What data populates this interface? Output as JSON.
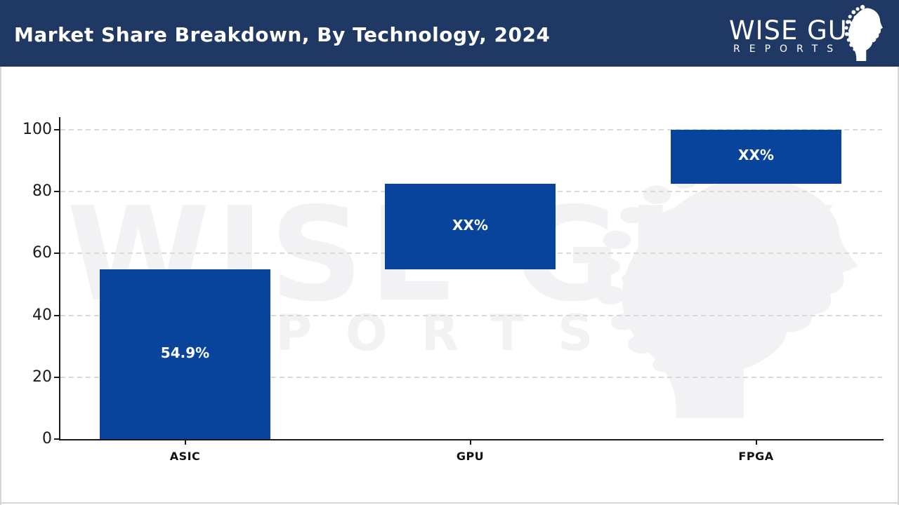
{
  "header": {
    "title": "Market Share Breakdown, By Technology, 2024",
    "bg_color": "#1f3864",
    "logo": {
      "name": "WISE GUY",
      "sub": "REPORTS"
    }
  },
  "watermark": {
    "name": "WISE GUY",
    "sub": "REPORTS"
  },
  "chart_data": {
    "type": "bar",
    "subtype": "stacked-waterfall",
    "title": "Market Share Breakdown, By Technology, 2024",
    "categories": [
      "ASIC",
      "GPU",
      "FPGA"
    ],
    "series": [
      {
        "name": "ASIC",
        "start": 0,
        "end": 54.9,
        "label": "54.9%"
      },
      {
        "name": "GPU",
        "start": 54.9,
        "end": 82.6,
        "label": "XX%"
      },
      {
        "name": "FPGA",
        "start": 82.6,
        "end": 100,
        "label": "XX%"
      }
    ],
    "xlabel": "",
    "ylabel": "",
    "ylim": [
      0,
      100
    ],
    "yticks": [
      0,
      20,
      40,
      60,
      80,
      100
    ],
    "grid": "horizontal dashed",
    "legend_position": "none",
    "colors": {
      "bar": "#08449c",
      "bar_label": "#ffffff",
      "axis": "#1a1a1a",
      "tick_label": "#1a1a1a",
      "gridline": "#d9d9d9",
      "header_bg": "#1f3864",
      "watermark": "#f2f2f4"
    }
  }
}
